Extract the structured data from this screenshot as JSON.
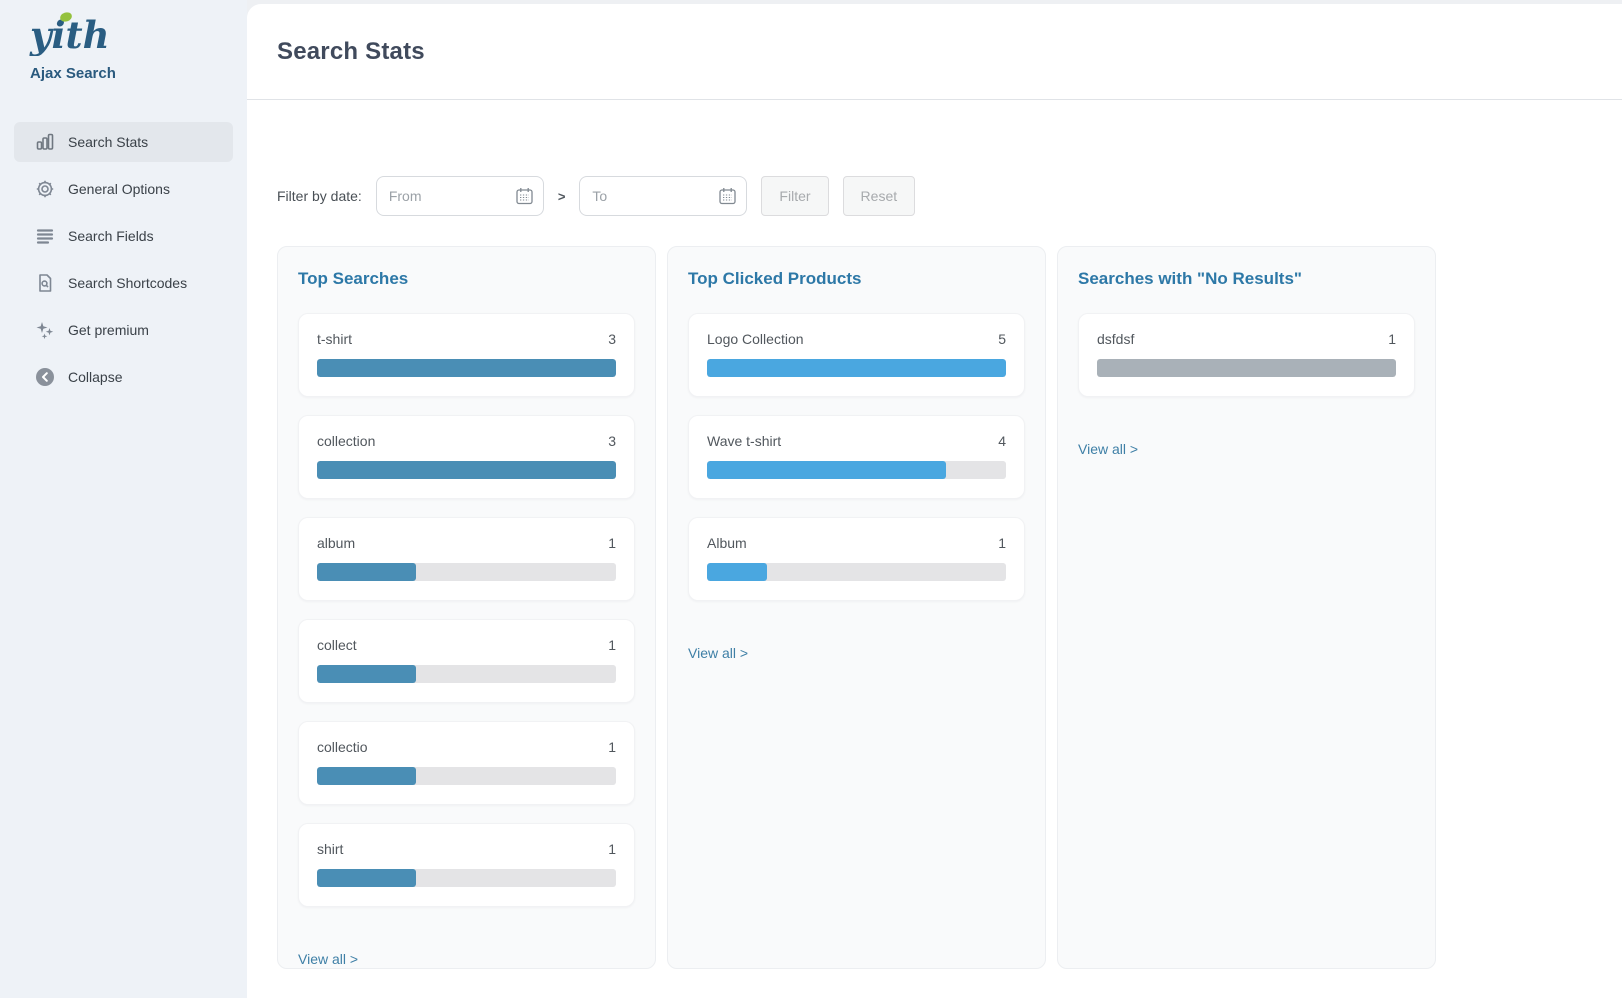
{
  "sidebar": {
    "logo_text": "yith",
    "app_name": "Ajax Search",
    "items": [
      {
        "label": "Search Stats",
        "icon": "bar-chart",
        "active": true
      },
      {
        "label": "General Options",
        "icon": "gear",
        "active": false
      },
      {
        "label": "Search Fields",
        "icon": "list",
        "active": false
      },
      {
        "label": "Search Shortcodes",
        "icon": "doc-search",
        "active": false
      },
      {
        "label": "Get premium",
        "icon": "sparkles",
        "active": false
      },
      {
        "label": "Collapse",
        "icon": "arrow-left-circle",
        "active": false
      }
    ]
  },
  "header": {
    "title": "Search Stats"
  },
  "filter": {
    "label": "Filter by date:",
    "from_placeholder": "From",
    "to_placeholder": "To",
    "separator": ">",
    "filter_button": "Filter",
    "reset_button": "Reset"
  },
  "cards": [
    {
      "title": "Top Searches",
      "view_all": "View all >",
      "bar_color": "#4a8eb5",
      "items": [
        {
          "label": "t-shirt",
          "count": 3,
          "percent": 100
        },
        {
          "label": "collection",
          "count": 3,
          "percent": 100
        },
        {
          "label": "album",
          "count": 1,
          "percent": 33
        },
        {
          "label": "collect",
          "count": 1,
          "percent": 33
        },
        {
          "label": "collectio",
          "count": 1,
          "percent": 33
        },
        {
          "label": "shirt",
          "count": 1,
          "percent": 33
        }
      ]
    },
    {
      "title": "Top Clicked Products",
      "view_all": "View all >",
      "bar_color": "#4aa7e0",
      "items": [
        {
          "label": "Logo Collection",
          "count": 5,
          "percent": 100
        },
        {
          "label": "Wave t-shirt",
          "count": 4,
          "percent": 80
        },
        {
          "label": "Album",
          "count": 1,
          "percent": 20
        }
      ]
    },
    {
      "title": "Searches with \"No Results\"",
      "view_all": "View all >",
      "bar_color": "#a9b1b8",
      "items": [
        {
          "label": "dsfdsf",
          "count": 1,
          "percent": 100
        }
      ]
    }
  ],
  "colors": {
    "accent_blue": "#2d78a7",
    "link_blue": "#3e7fa6",
    "bar_steel": "#4a8eb5",
    "bar_bright": "#4aa7e0",
    "bar_gray": "#a9b1b8",
    "logo_blue": "#2a5d82",
    "logo_green": "#94c13d",
    "sidebar_bg": "#eef2f7",
    "active_item_bg": "#e3e7ec"
  }
}
